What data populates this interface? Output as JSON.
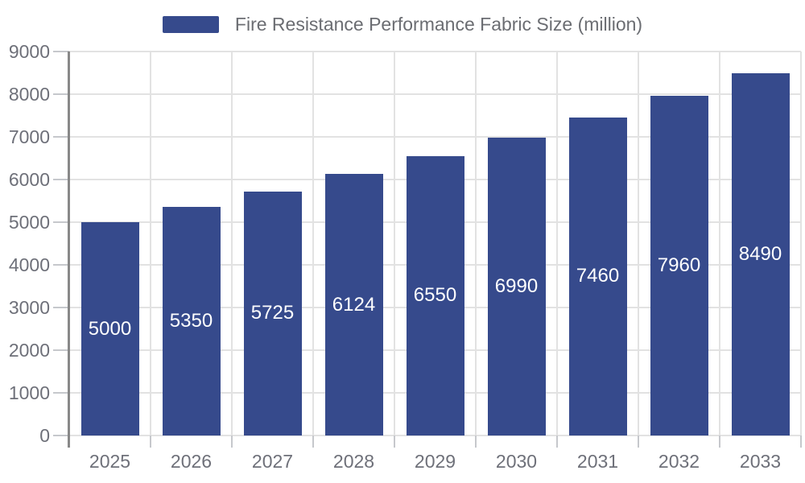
{
  "legend": {
    "label": "Fire Resistance Performance Fabric Size (million)"
  },
  "chart_data": {
    "type": "bar",
    "title": "Fire Resistance Performance Fabric Size (million)",
    "series_name": "Fire Resistance Performance Fabric Size (million)",
    "categories": [
      "2025",
      "2026",
      "2027",
      "2028",
      "2029",
      "2030",
      "2031",
      "2032",
      "2033"
    ],
    "values": [
      5000,
      5350,
      5725,
      6124,
      6550,
      6990,
      7460,
      7960,
      8490
    ],
    "xlabel": "",
    "ylabel": "",
    "ylim": [
      0,
      9000
    ],
    "ytick_interval": 1000,
    "y_tick_labels": [
      "0",
      "1000",
      "2000",
      "3000",
      "4000",
      "5000",
      "6000",
      "7000",
      "8000",
      "9000"
    ],
    "grid": true,
    "legend_position": "top-center",
    "value_labels": "inside-center",
    "colors": {
      "bar": "#364a8c",
      "grid": "#e2e2e2",
      "tick": "#c6c8cc",
      "axis_line": "#888888",
      "axis_text": "#6e7079",
      "legend_text": "#6b6d72",
      "value_label": "#ffffff",
      "background": "#ffffff"
    }
  }
}
